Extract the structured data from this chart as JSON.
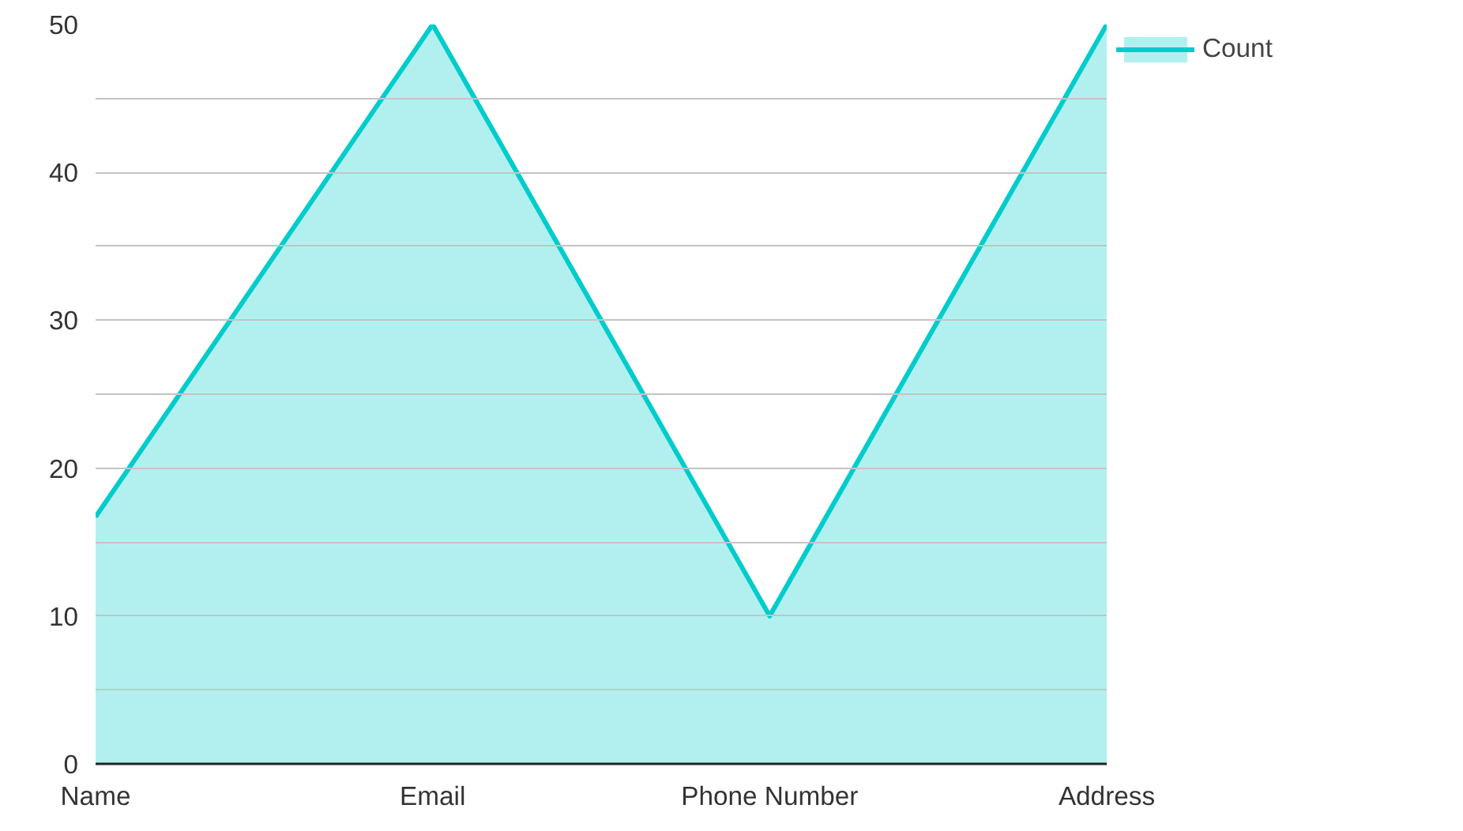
{
  "chart_data": {
    "type": "area",
    "categories": [
      "Name",
      "Email",
      "Phone Number",
      "Address"
    ],
    "series": [
      {
        "name": "Count",
        "color": "#00cccc",
        "values": [
          16.7,
          50,
          10,
          50
        ]
      }
    ],
    "ylim": [
      0,
      50
    ],
    "yticks": [
      0,
      {
        "value": 5,
        "label": null
      },
      10,
      {
        "value": 15,
        "label": null
      },
      20,
      {
        "value": 25,
        "label": null
      },
      30,
      {
        "value": 35,
        "label": null
      },
      40,
      {
        "value": 45,
        "label": null
      },
      50
    ],
    "grid": "y",
    "legend": "top right"
  }
}
